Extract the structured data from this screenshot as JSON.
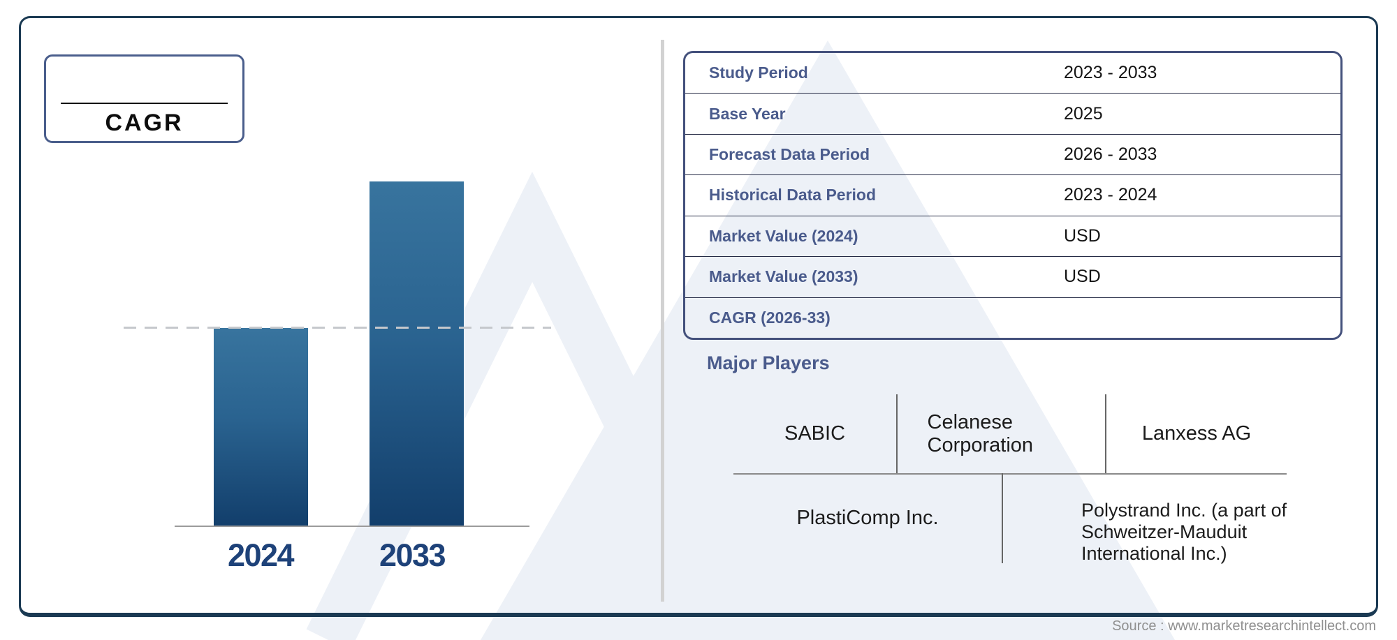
{
  "cagr_box": {
    "value": "",
    "label": "CAGR"
  },
  "chart_data": {
    "type": "bar",
    "categories": [
      "2024",
      "2033"
    ],
    "values": [
      57.6,
      100
    ],
    "value_unit": "relative bar height, percent of tallest bar (no numeric axis shown)",
    "title": "",
    "xlabel": "",
    "ylabel": "",
    "grid": false,
    "reference_line": {
      "style": "dashed",
      "at_value": 57.6,
      "note": "dashed line at top of 2024 bar"
    },
    "bar_gradient_top": "#38749E",
    "bar_gradient_bottom": "#123E6B",
    "category_label_color": "#1e4279"
  },
  "info_table": {
    "rows": [
      {
        "label": "Study Period",
        "value": "2023 - 2033"
      },
      {
        "label": "Base Year",
        "value": "2025"
      },
      {
        "label": "Forecast Data Period",
        "value": "2026 - 2033"
      },
      {
        "label": "Historical Data Period",
        "value": "2023 - 2024"
      },
      {
        "label": "Market Value (2024)",
        "value": "USD"
      },
      {
        "label": "Market Value (2033)",
        "value": "USD"
      },
      {
        "label": "CAGR (2026-33)",
        "value": ""
      }
    ]
  },
  "major_players": {
    "heading": "Major Players",
    "row1": [
      "SABIC",
      "Celanese Corporation",
      "Lanxess AG"
    ],
    "row2": [
      "PlastiComp Inc.",
      "Polystrand Inc. (a part of Schweitzer-Mauduit International Inc.)"
    ]
  },
  "footer": {
    "source_note": "Source : www.marketresearchintellect.com"
  },
  "colors": {
    "outer_border": "#1b3a53",
    "box_border": "#44517c",
    "label_blue": "#4a5b8c",
    "watermark": "#EDF1F7",
    "divider": "#d2d2d2"
  }
}
